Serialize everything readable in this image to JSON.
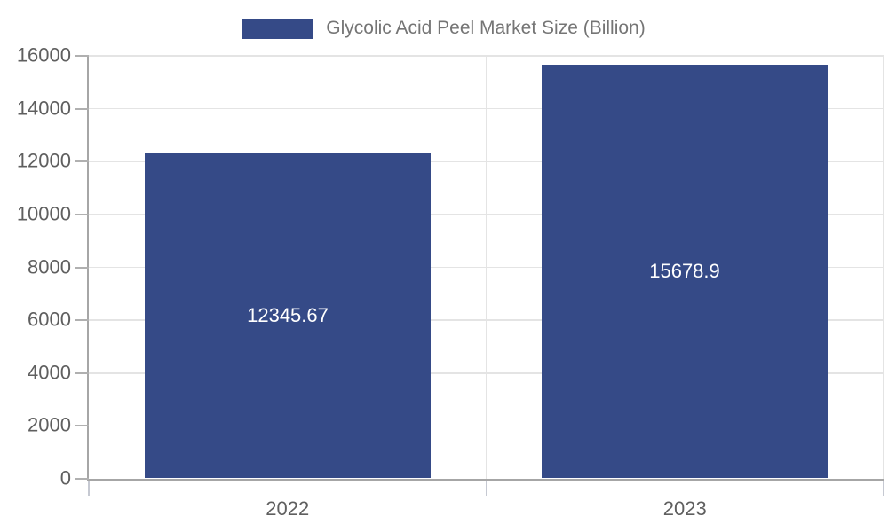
{
  "chart_data": {
    "type": "bar",
    "title": "Glycolic Acid Peel Market Size (Billion)",
    "categories": [
      "2022",
      "2023"
    ],
    "values": [
      12345.67,
      15678.9
    ],
    "value_labels": [
      "12345.67",
      "15678.9"
    ],
    "series": [
      {
        "name": "Glycolic Acid Peel Market Size (Billion)",
        "values": [
          12345.67,
          15678.9
        ]
      }
    ],
    "xlabel": "",
    "ylabel": "",
    "ylim": [
      0,
      16000
    ],
    "ytick_step": 2000,
    "ytick_labels": [
      "0",
      "2000",
      "4000",
      "6000",
      "8000",
      "10000",
      "12000",
      "14000",
      "16000"
    ],
    "grid": true,
    "legend_position": "top-center",
    "colors": {
      "bar": "#354a87",
      "value_label": "#ffffff",
      "tick_label": "#5f5f5f",
      "legend_label": "#757575",
      "gridline": "#e4e4e4",
      "axis_line": "#a6a6a6",
      "y_tick": "#b0b0b0",
      "x_tick": "#c6c9d2"
    }
  }
}
